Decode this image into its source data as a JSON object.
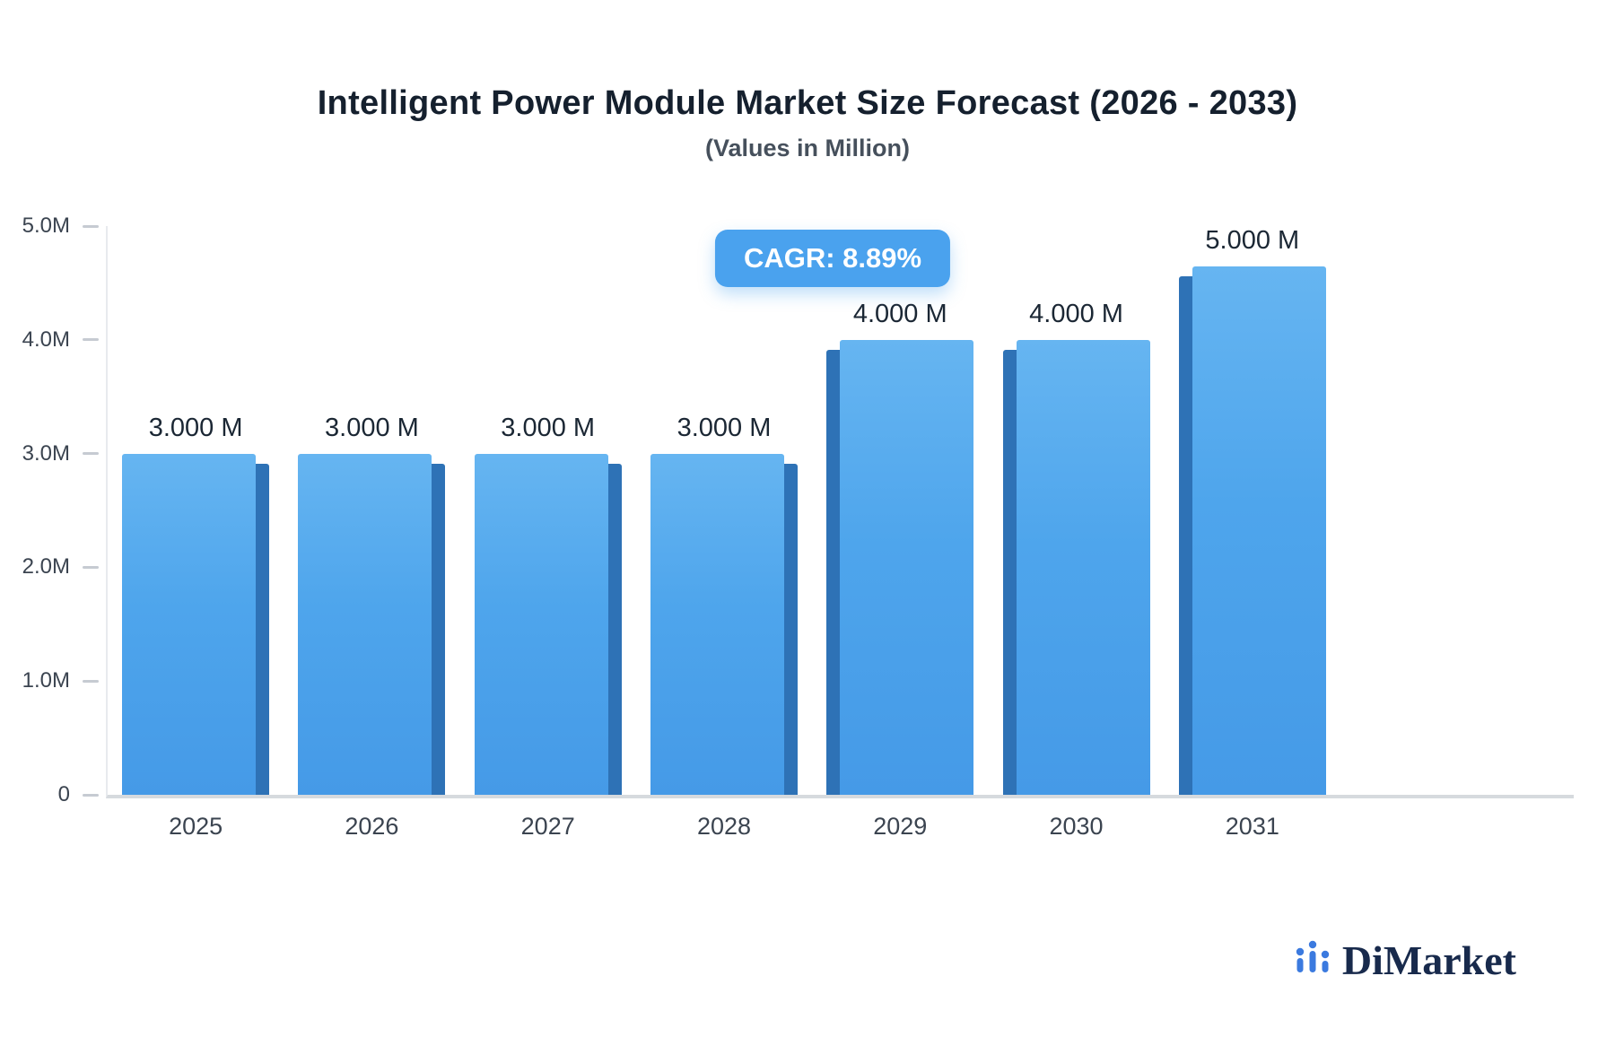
{
  "header": {
    "title": "Intelligent Power Module Market Size Forecast (2026 - 2033)",
    "subtitle": "(Values in Million)"
  },
  "badge": {
    "label": "CAGR: 8.89%",
    "bg_color": "#4AA2EE",
    "text_color": "#FFFFFF"
  },
  "chart_data": {
    "type": "bar",
    "title": "Intelligent Power Module Market Size Forecast (2026 - 2033)",
    "subtitle": "(Values in Million)",
    "unit": "M",
    "categories": [
      "2025",
      "2026",
      "2027",
      "2028",
      "2029",
      "2030",
      "2031"
    ],
    "values": [
      3,
      3,
      3,
      3,
      4,
      4,
      5
    ],
    "value_labels": [
      "3.000 M",
      "3.000 M",
      "3.000 M",
      "3.000 M",
      "4.000 M",
      "4.000 M",
      "5.000 M"
    ],
    "ylim": [
      0,
      5
    ],
    "yticks": [
      "0",
      "1.0M",
      "2.0M",
      "3.0M",
      "4.0M",
      "5.0M"
    ],
    "xlabel": "",
    "ylabel": "",
    "grid": false,
    "legend": false,
    "colors": {
      "bar_top": "#66B5F1",
      "bar_bottom": "#459AE7",
      "bar_side_shade": "#2E72B6",
      "axis_line": "#D6DADE",
      "tick_text": "#3B4450",
      "value_label_text": "#1B2734"
    }
  },
  "brand": {
    "name": "DiMarket",
    "icon": "mini-bar-chart-logo-icon",
    "icon_color": "#3B7ADF",
    "text_color": "#182A4C"
  }
}
